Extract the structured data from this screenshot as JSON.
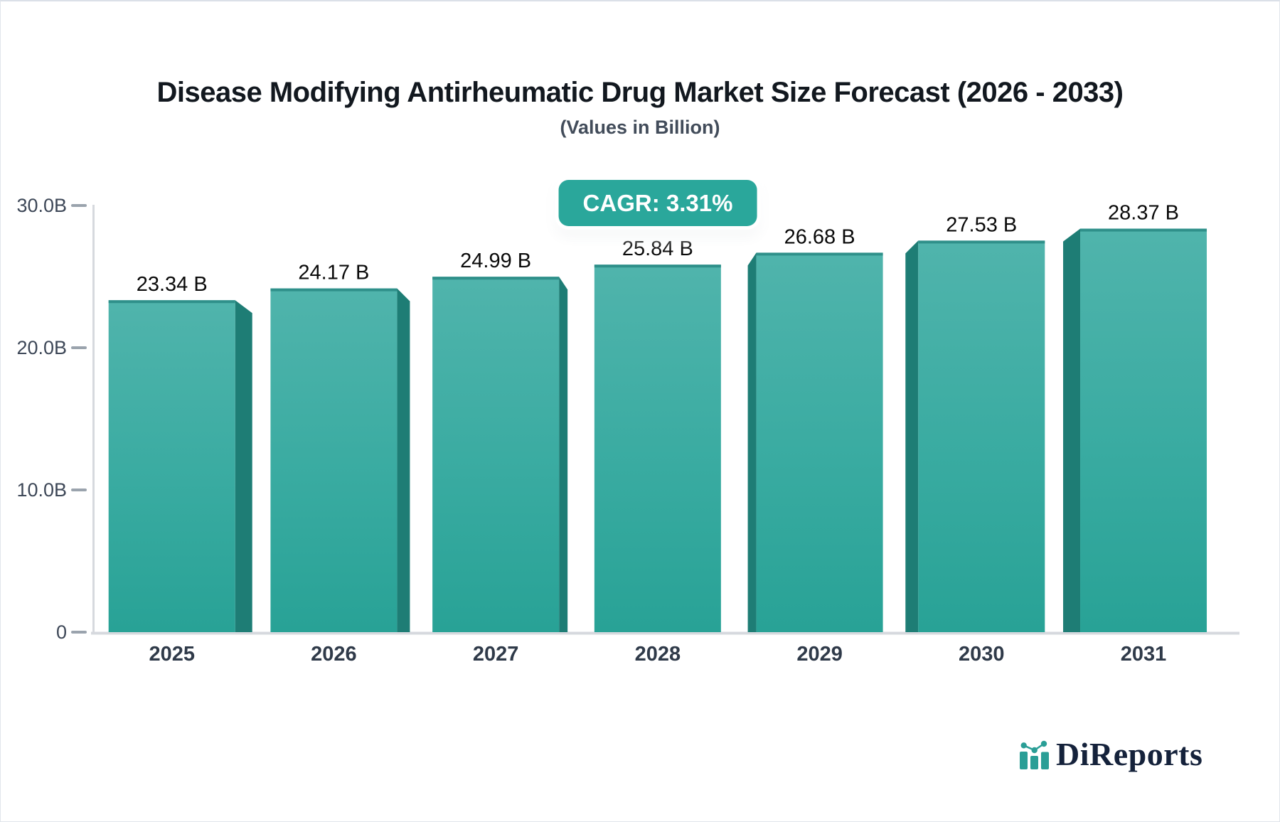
{
  "page": {
    "background": "#ffffff",
    "border_color": "#e1e5eb"
  },
  "chart_data": {
    "type": "bar",
    "title": "Disease Modifying Antirheumatic Drug Market Size Forecast (2026 - 2033)",
    "subtitle": "(Values in Billion)",
    "cagr_label": "CAGR: 3.31%",
    "categories": [
      "2025",
      "2026",
      "2027",
      "2028",
      "2029",
      "2030",
      "2031"
    ],
    "values": [
      23.34,
      24.17,
      24.99,
      25.84,
      26.68,
      27.53,
      28.37
    ],
    "value_labels": [
      "23.34 B",
      "24.17 B",
      "24.99 B",
      "25.84 B",
      "26.68 B",
      "27.53 B",
      "28.37 B"
    ],
    "y_axis": {
      "ticks": [
        {
          "label": "0",
          "value": 0
        },
        {
          "label": "10.0B",
          "value": 10
        },
        {
          "label": "20.0B",
          "value": 20
        },
        {
          "label": "30.0B",
          "value": 30
        }
      ]
    },
    "ylim": [
      0,
      30
    ],
    "grid": false,
    "legend": "none",
    "colors": {
      "bar_gradient_top": "#50b4ac",
      "bar_gradient_bottom": "#28a296",
      "bar_top_edge": "#2f908a",
      "bar_side_face": "#1e7d75",
      "axis_line": "#d6d9de",
      "tick_dash": "#9aa3ad",
      "tick_label": "#3d4757",
      "x_label": "#2f3a49",
      "value_label": "#0a0a0a",
      "badge_background": "#2aa79b",
      "badge_text": "#ffffff"
    }
  },
  "logo": {
    "text": "DiReports",
    "text_color": "#15223b",
    "mark_color": "#2a9e96"
  }
}
